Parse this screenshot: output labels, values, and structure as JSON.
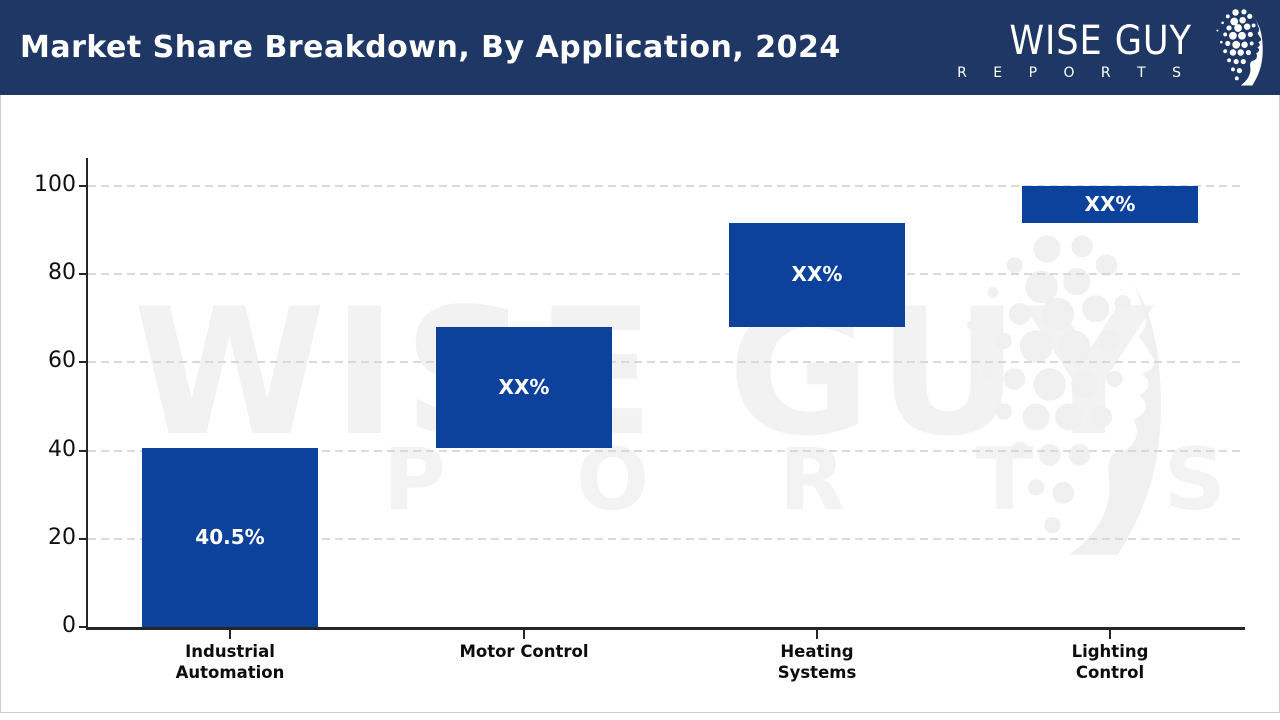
{
  "header": {
    "title": "Market Share Breakdown, By Application, 2024",
    "bg_color": "#1f3765",
    "brand": {
      "line1": "WISE GUY",
      "line2": "R E P O R T S",
      "logo_icon": "dotted-head-profile"
    }
  },
  "watermark": {
    "line1": "WISE GUY",
    "line2": "P O R T S",
    "icon": "dotted-head-profile",
    "color": "#f2f2f2"
  },
  "chart_data": {
    "type": "bar",
    "subtype": "waterfall",
    "title": "Market Share Breakdown, By Application, 2024",
    "categories": [
      "Industrial Automation",
      "Motor Control",
      "Heating Systems",
      "Lighting Control"
    ],
    "segments": [
      {
        "category": "Industrial Automation",
        "start": 0,
        "end": 40.5,
        "label": "40.5%"
      },
      {
        "category": "Motor Control",
        "start": 40.5,
        "end": 68,
        "label": "XX%"
      },
      {
        "category": "Heating Systems",
        "start": 68,
        "end": 91.5,
        "label": "XX%"
      },
      {
        "category": "Lighting Control",
        "start": 91.5,
        "end": 100,
        "label": "XX%"
      }
    ],
    "y_ticks": [
      0,
      20,
      40,
      60,
      80,
      100
    ],
    "ylim": [
      0,
      106
    ],
    "xlabel": "",
    "ylabel": "",
    "bar_color": "#0d429c",
    "grid": "horizontal-dashed",
    "grid_color": "#d9d9d9",
    "legend": "none"
  }
}
